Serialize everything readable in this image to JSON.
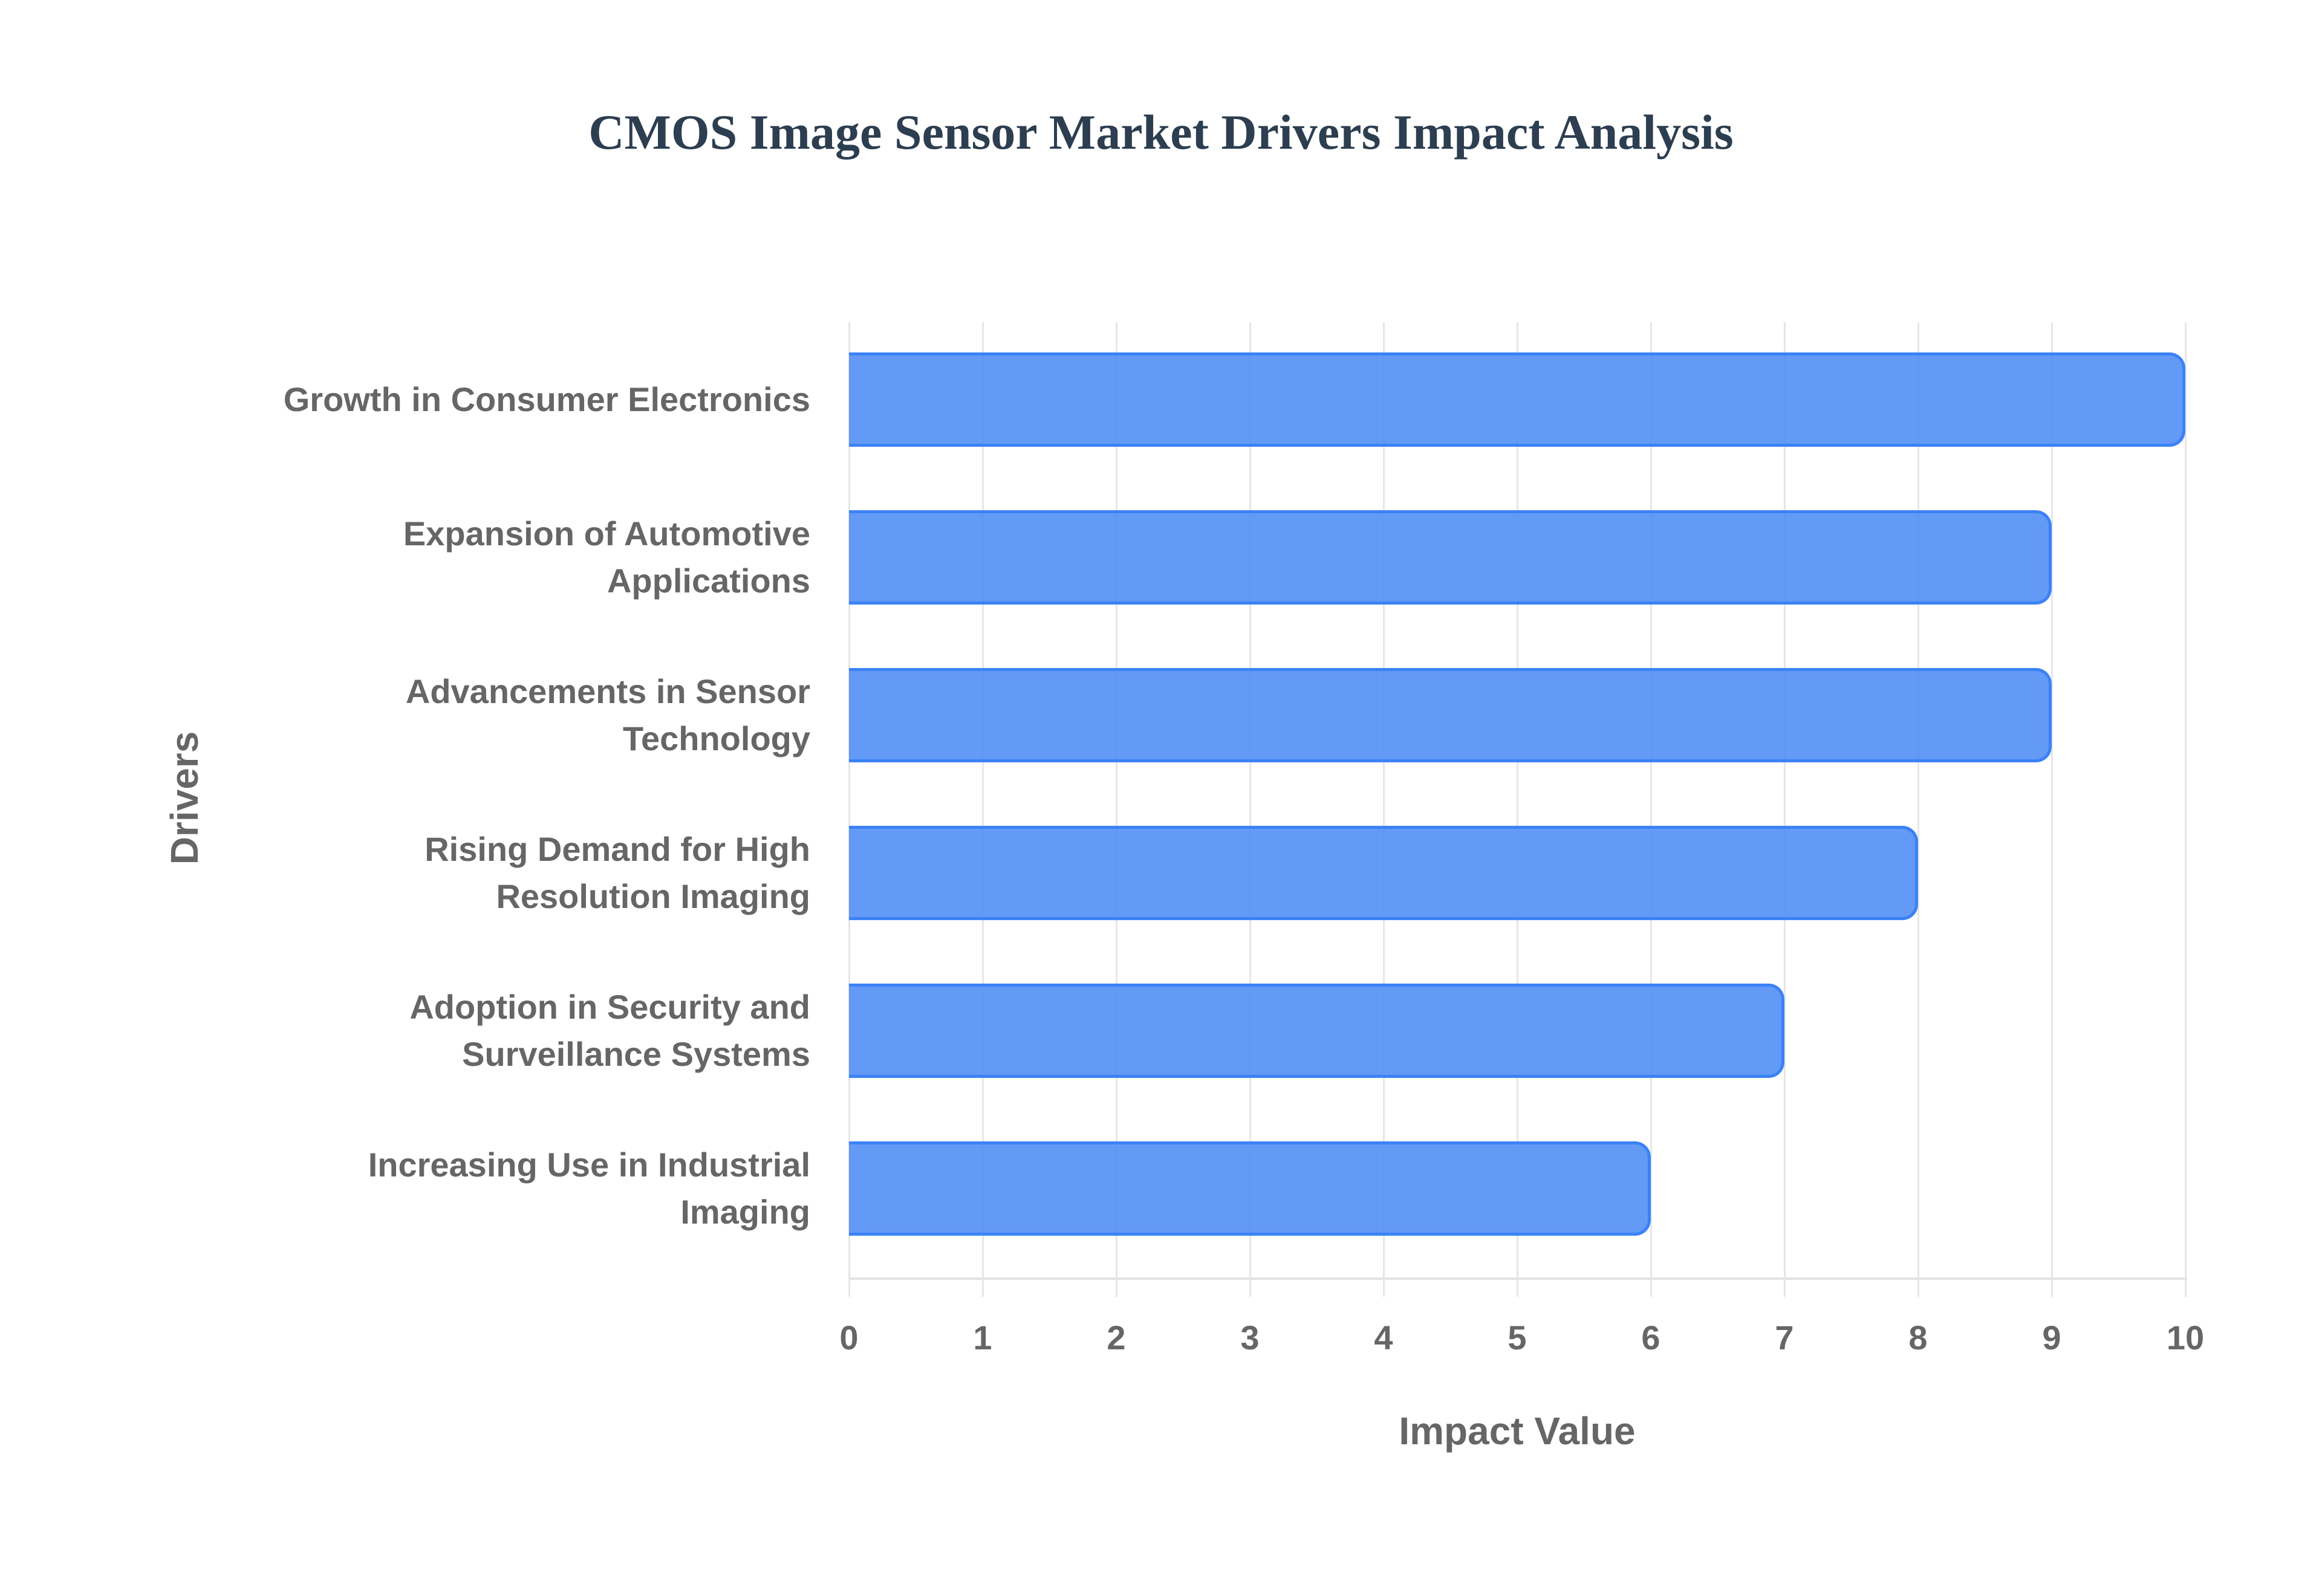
{
  "chart": {
    "title": "CMOS Image Sensor Market Drivers Impact Analysis",
    "xlabel": "Impact Value",
    "ylabel": "Drivers",
    "xticks": [
      "0",
      "1",
      "2",
      "3",
      "4",
      "5",
      "6",
      "7",
      "8",
      "9",
      "10"
    ],
    "bar_color": "#3b82f6",
    "categories": [
      {
        "label": "Growth in Consumer Electronics",
        "lines": [
          "Growth in Consumer Electronics"
        ],
        "value": 10
      },
      {
        "label": "Expansion of Automotive Applications",
        "lines": [
          "Expansion of Automotive",
          "Applications"
        ],
        "value": 9
      },
      {
        "label": "Advancements in Sensor Technology",
        "lines": [
          "Advancements in Sensor",
          "Technology"
        ],
        "value": 9
      },
      {
        "label": "Rising Demand for High Resolution Imaging",
        "lines": [
          "Rising Demand for High",
          "Resolution Imaging"
        ],
        "value": 8
      },
      {
        "label": "Adoption in Security and Surveillance Systems",
        "lines": [
          "Adoption in Security and",
          "Surveillance Systems"
        ],
        "value": 7
      },
      {
        "label": "Increasing Use in Industrial Imaging",
        "lines": [
          "Increasing Use in Industrial",
          "Imaging"
        ],
        "value": 6
      }
    ]
  },
  "chart_data": {
    "type": "bar",
    "orientation": "horizontal",
    "title": "CMOS Image Sensor Market Drivers Impact Analysis",
    "xlabel": "Impact Value",
    "ylabel": "Drivers",
    "categories": [
      "Growth in Consumer Electronics",
      "Expansion of Automotive Applications",
      "Advancements in Sensor Technology",
      "Rising Demand for High Resolution Imaging",
      "Adoption in Security and Surveillance Systems",
      "Increasing Use in Industrial Imaging"
    ],
    "values": [
      10,
      9,
      9,
      8,
      7,
      6
    ],
    "xlim": [
      0,
      10
    ],
    "xticks": [
      0,
      1,
      2,
      3,
      4,
      5,
      6,
      7,
      8,
      9,
      10
    ],
    "grid": true,
    "legend": null,
    "colors": {
      "fill": "#4d8cf5",
      "border": "#3b82f6"
    }
  }
}
